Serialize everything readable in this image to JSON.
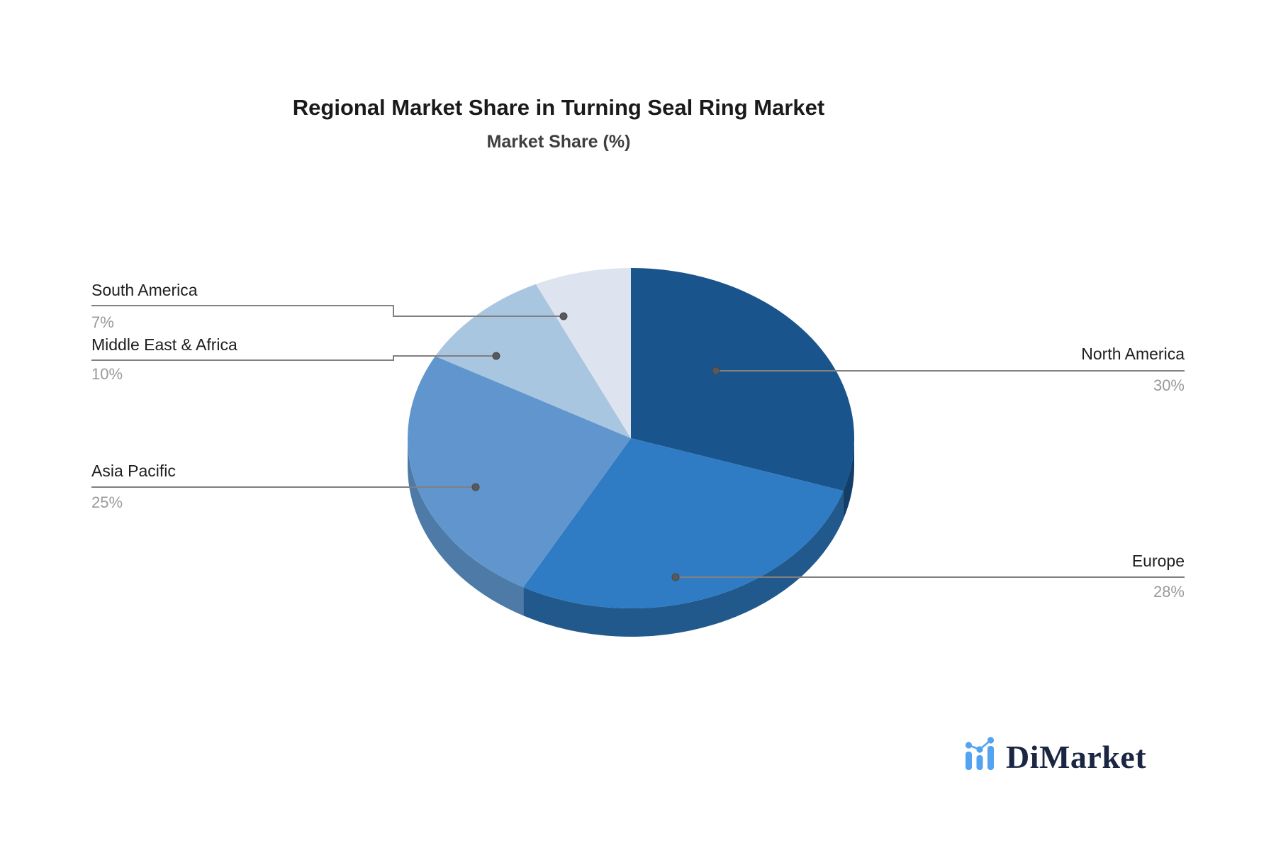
{
  "header": {
    "title": "Regional Market Share in Turning Seal Ring Market",
    "subtitle": "Market Share (%)"
  },
  "chart_data": {
    "type": "pie",
    "title": "Regional Market Share in Turning Seal Ring Market",
    "subtitle": "Market Share (%)",
    "unit": "%",
    "effect": "3d",
    "start_angle_deg": 0,
    "direction": "clockwise",
    "legend": "none",
    "connector_color": "#808080",
    "dot_color": "#58595b",
    "label_text_color": "#1e1e1e",
    "value_text_color": "#9a9a9a",
    "slices": [
      {
        "label": "North America",
        "value": 30,
        "display": "30%",
        "color": "#1a548c",
        "side_color": "#123e68",
        "label_side": "right"
      },
      {
        "label": "Europe",
        "value": 28,
        "display": "28%",
        "color": "#2f7cc4",
        "side_color": "#22598c",
        "label_side": "right"
      },
      {
        "label": "Asia Pacific",
        "value": 25,
        "display": "25%",
        "color": "#6096cd",
        "side_color": "#4d7aa6",
        "label_side": "left"
      },
      {
        "label": "Middle East & Africa",
        "value": 10,
        "display": "10%",
        "color": "#a9c6e1",
        "side_color": "#7e9cbd",
        "label_side": "left"
      },
      {
        "label": "South America",
        "value": 7,
        "display": "7%",
        "color": "#dde4ef",
        "side_color": "#b3bcd0",
        "label_side": "left"
      }
    ]
  },
  "logo": {
    "text": "DiMarket",
    "text_color": "#1a2642",
    "icon_color": "#54a3f2",
    "icon": "bar-chart-with-trend-dots"
  }
}
